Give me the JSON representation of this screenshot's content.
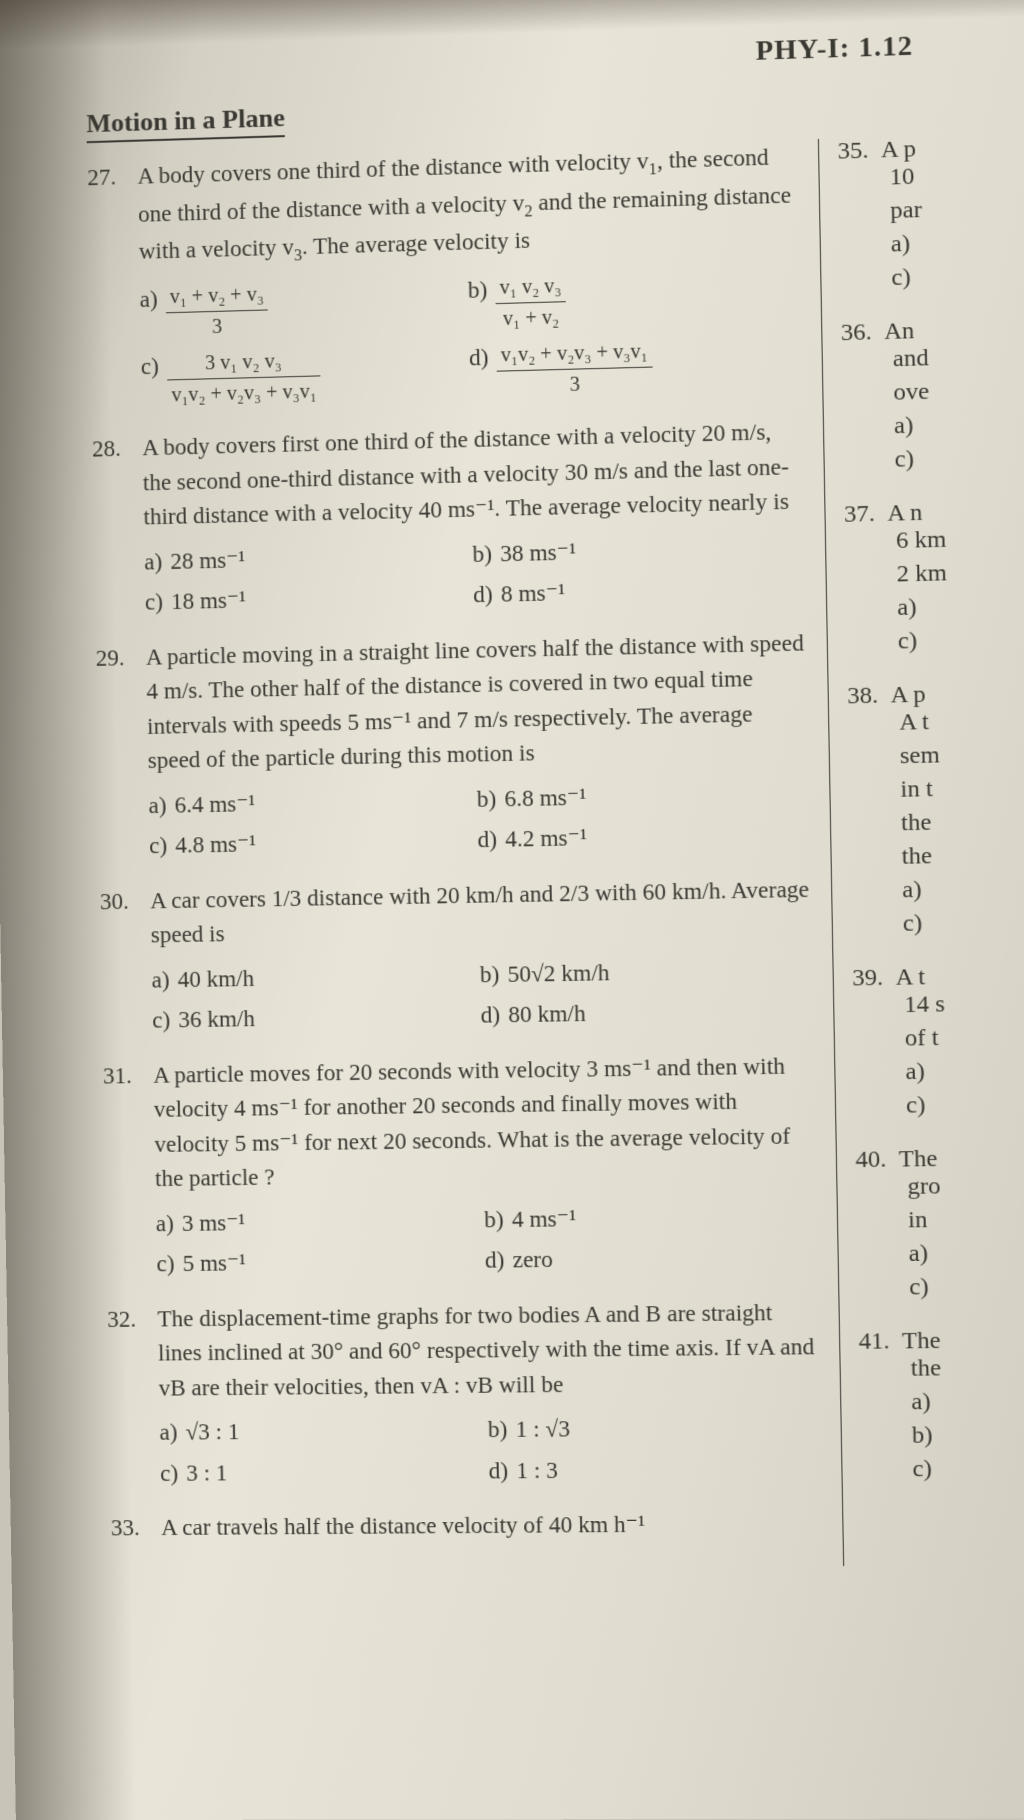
{
  "header": {
    "code": "PHY-I: 1.12"
  },
  "section_title": "Motion in a Plane",
  "questions": [
    {
      "num": "27.",
      "text_parts": [
        "A body covers one third of the distance with velocity v",
        ", the second one third of the distance with a velocity v",
        " and the remaining distance with a velocity v",
        ". The average velocity is"
      ],
      "subs": [
        "1",
        "2",
        "3"
      ],
      "options": {
        "a": {
          "num": "v₁ + v₂ + v₃",
          "den": "3"
        },
        "b": {
          "num": "v₁ v₂ v₃",
          "den": "v₁ + v₂"
        },
        "c": {
          "num": "3 v₁ v₂ v₃",
          "den": "v₁v₂ + v₂v₃ + v₃v₁"
        },
        "d": {
          "num": "v₁v₂ + v₂v₃ + v₃v₁",
          "den": "3"
        }
      }
    },
    {
      "num": "28.",
      "text": "A body covers first one third of the distance with a velocity 20 m/s, the second one-third distance with a velocity 30 m/s and the last one-third distance with a velocity 40 ms⁻¹. The average velocity nearly is",
      "options": {
        "a": "28 ms⁻¹",
        "b": "38 ms⁻¹",
        "c": "18 ms⁻¹",
        "d": "8 ms⁻¹"
      }
    },
    {
      "num": "29.",
      "text": "A particle moving in a straight line covers half the distance with speed 4 m/s. The other half of the distance is covered in two equal time intervals with speeds 5 ms⁻¹ and 7 m/s respectively. The average speed of the particle during this motion is",
      "options": {
        "a": "6.4 ms⁻¹",
        "b": "6.8 ms⁻¹",
        "c": "4.8 ms⁻¹",
        "d": "4.2 ms⁻¹"
      }
    },
    {
      "num": "30.",
      "text": "A car covers 1/3 distance with 20 km/h and 2/3 with 60 km/h. Average speed is",
      "options": {
        "a": "40 km/h",
        "b": "50√2 km/h",
        "c": "36 km/h",
        "d": "80 km/h"
      }
    },
    {
      "num": "31.",
      "text": "A particle moves for 20 seconds with velocity 3 ms⁻¹ and then with velocity 4 ms⁻¹ for another 20 seconds and finally moves with velocity 5 ms⁻¹ for next 20 seconds. What is the average velocity of the particle ?",
      "options": {
        "a": "3 ms⁻¹",
        "b": "4 ms⁻¹",
        "c": "5 ms⁻¹",
        "d": "zero"
      }
    },
    {
      "num": "32.",
      "text": "The displacement-time graphs for two bodies A and B are straight lines inclined at 30° and 60° respectively with the time axis. If vA and vB are their velocities, then vA : vB will be",
      "options": {
        "a": "√3 : 1",
        "b": "1 : √3",
        "c": "3 : 1",
        "d": "1 : 3"
      }
    },
    {
      "num": "33.",
      "text": "A car travels half the distance velocity of 40 km h⁻¹"
    }
  ],
  "right_column": [
    {
      "num": "35.",
      "frags": [
        "A p",
        "10",
        "par",
        "a)",
        "c)"
      ]
    },
    {
      "num": "36.",
      "frags": [
        "An",
        "and",
        "ove",
        "a)",
        "c)"
      ]
    },
    {
      "num": "37.",
      "frags": [
        "A n",
        "6 km",
        "2 km",
        "a)",
        "c)"
      ]
    },
    {
      "num": "38.",
      "frags": [
        "A p",
        "A t",
        "sem",
        "in t",
        "the",
        "the",
        "a)",
        "c)"
      ]
    },
    {
      "num": "39.",
      "frags": [
        "A t",
        "14 s",
        "of t",
        "a)",
        "c)"
      ]
    },
    {
      "num": "40.",
      "frags": [
        "The",
        "gro",
        "in",
        "a)",
        "c)"
      ]
    },
    {
      "num": "41.",
      "frags": [
        "The",
        "the",
        "a)",
        "b)",
        "c)"
      ]
    }
  ]
}
